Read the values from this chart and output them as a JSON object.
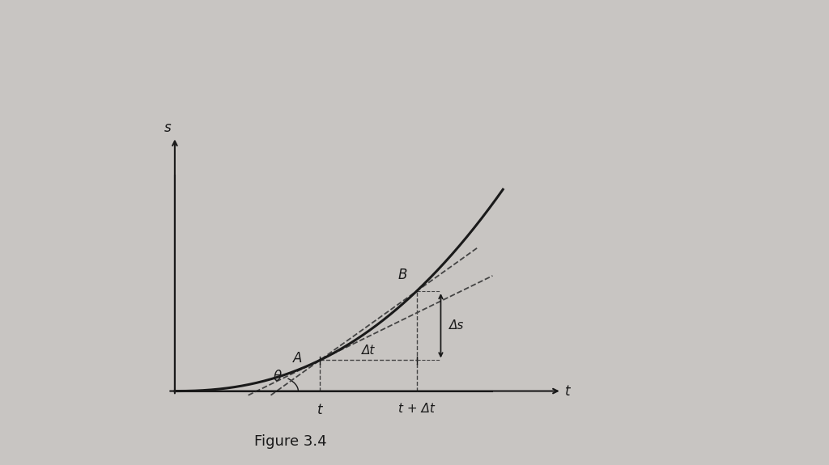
{
  "background_color": "#c8c5c2",
  "figure_caption": "Figure 3.4",
  "curve_color": "#1a1a1a",
  "dashed_line_color": "#444444",
  "axis_color": "#1a1a1a",
  "t_val": 0.42,
  "dt_val": 0.28,
  "theta_label": "θ",
  "A_label": "A",
  "B_label": "B",
  "delta_t_label": "Δt",
  "delta_s_label": "Δs",
  "t_label": "t",
  "t_plus_dt_label": "t + Δt",
  "s_label": "s",
  "t_axis_label": "t",
  "caption_fontsize": 13,
  "label_fontsize": 12,
  "curve_power": 2.3
}
